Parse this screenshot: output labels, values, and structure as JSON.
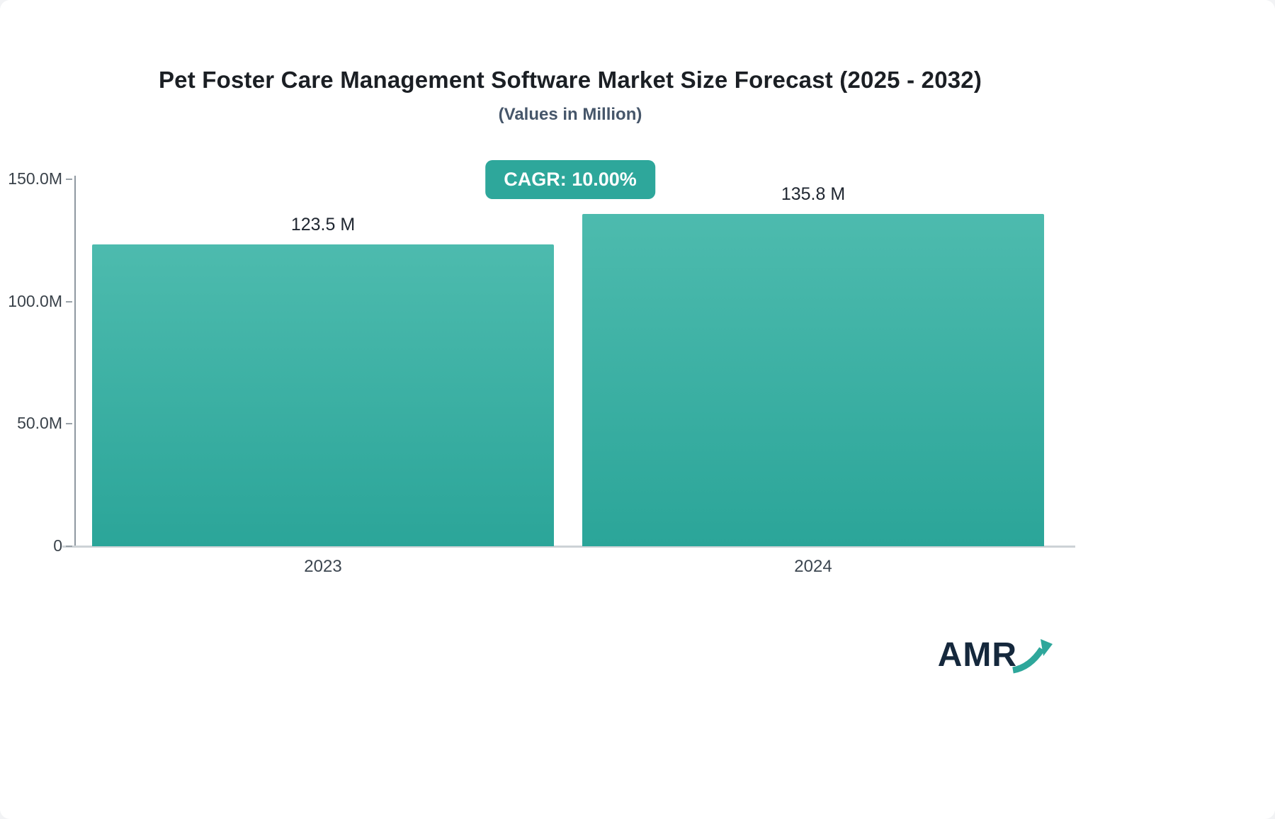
{
  "title": "Pet Foster Care Management Software Market Size Forecast (2025 - 2032)",
  "subtitle": "(Values in Million)",
  "cagr_badge": "CAGR: 10.00%",
  "logo_text": "AMR",
  "colors": {
    "accent": "#2ea79b",
    "bar_gradient_top": "#4dbbae",
    "bar_gradient_bottom": "#2ba599",
    "logo_navy": "#15283c"
  },
  "chart_data": {
    "type": "bar",
    "title": "Pet Foster Care Management Software Market Size Forecast (2025 - 2032)",
    "subtitle": "(Values in Million)",
    "categories": [
      "2023",
      "2024"
    ],
    "values": [
      123.5,
      135.8
    ],
    "value_labels": [
      "123.5 M",
      "135.8 M"
    ],
    "xlabel": "",
    "ylabel": "",
    "ylim": [
      0,
      150
    ],
    "y_ticks": [
      {
        "value": 0,
        "label": "0"
      },
      {
        "value": 50,
        "label": "50.0M"
      },
      {
        "value": 100,
        "label": "100.0M"
      },
      {
        "value": 150,
        "label": "150.0M"
      }
    ],
    "grid": false,
    "legend": false,
    "annotation": "CAGR: 10.00%"
  }
}
